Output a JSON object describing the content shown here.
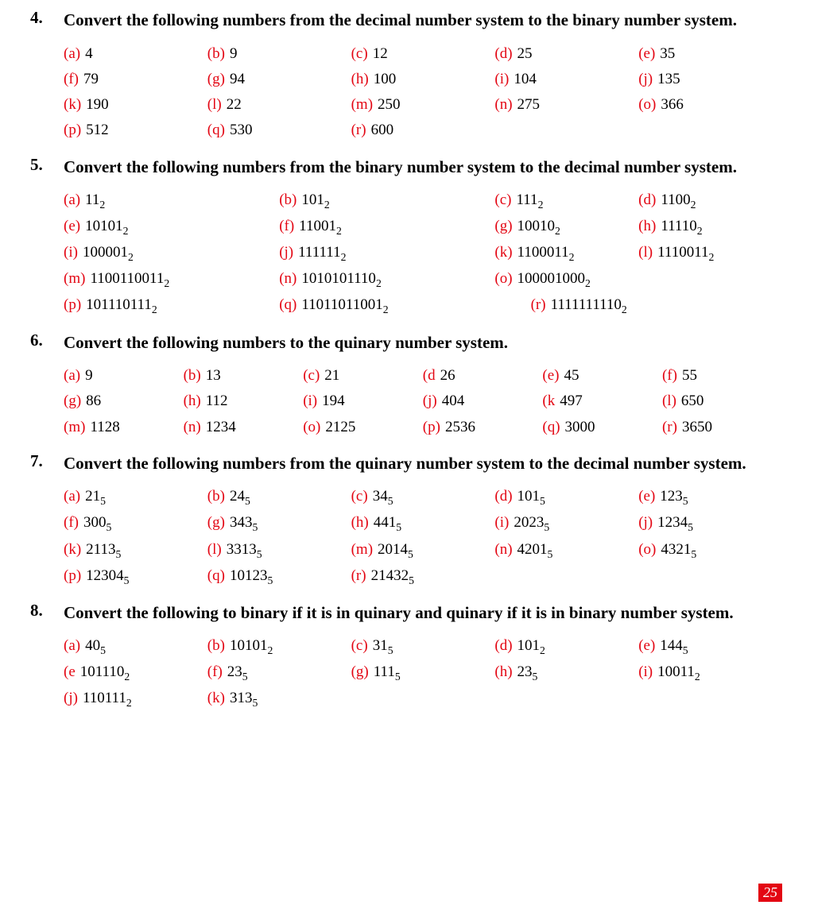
{
  "accent_color": "#e30613",
  "text_color": "#000000",
  "bg_color": "#ffffff",
  "page_corner": "25",
  "q4": {
    "num": "4.",
    "text": "Convert the following numbers from the decimal number system to the binary number system.",
    "items": [
      {
        "l": "(a)",
        "v": "4"
      },
      {
        "l": "(b)",
        "v": "9"
      },
      {
        "l": "(c)",
        "v": "12"
      },
      {
        "l": "(d)",
        "v": "25"
      },
      {
        "l": "(e)",
        "v": "35"
      },
      {
        "l": "(f)",
        "v": "79"
      },
      {
        "l": "(g)",
        "v": "94"
      },
      {
        "l": "(h)",
        "v": "100"
      },
      {
        "l": "(i)",
        "v": "104"
      },
      {
        "l": "(j)",
        "v": "135"
      },
      {
        "l": "(k)",
        "v": "190"
      },
      {
        "l": "(l)",
        "v": "22"
      },
      {
        "l": "(m)",
        "v": "250"
      },
      {
        "l": "(n)",
        "v": "275"
      },
      {
        "l": "(o)",
        "v": "366"
      },
      {
        "l": "(p)",
        "v": "512"
      },
      {
        "l": "(q)",
        "v": "530"
      },
      {
        "l": "(r)",
        "v": "600"
      }
    ]
  },
  "q5": {
    "num": "5.",
    "text": "Convert the following numbers from the binary number system to the decimal number system.",
    "rows": [
      [
        {
          "l": "(a)",
          "v": "11",
          "s": "2"
        },
        {
          "l": "(b)",
          "v": "101",
          "s": "2"
        },
        {
          "l": "(c)",
          "v": "111",
          "s": "2"
        },
        {
          "l": "(d)",
          "v": "1100",
          "s": "2"
        }
      ],
      [
        {
          "l": "(e)",
          "v": "10101",
          "s": "2"
        },
        {
          "l": "(f)",
          "v": "11001",
          "s": "2"
        },
        {
          "l": "(g)",
          "v": "10010",
          "s": "2"
        },
        {
          "l": "(h)",
          "v": "11110",
          "s": "2"
        }
      ],
      [
        {
          "l": "(i)",
          "v": "100001",
          "s": "2"
        },
        {
          "l": "(j)",
          "v": "111111",
          "s": "2"
        },
        {
          "l": "(k)",
          "v": "1100011",
          "s": "2"
        },
        {
          "l": "(l)",
          "v": "1110011",
          "s": "2"
        }
      ],
      [
        {
          "l": "(m)",
          "v": "1100110011",
          "s": "2"
        },
        {
          "l": "(n)",
          "v": "1010101110",
          "s": "2"
        },
        {
          "l": "(o)",
          "v": "100001000",
          "s": "2"
        }
      ],
      [
        {
          "l": "(p)",
          "v": "101110111",
          "s": "2"
        },
        {
          "l": "(q)",
          "v": "11011011001",
          "s": "2"
        },
        {
          "l": "(r)",
          "v": "1111111110",
          "s": "2"
        }
      ]
    ]
  },
  "q6": {
    "num": "6.",
    "text": "Convert the following numbers to the quinary number system.",
    "items": [
      {
        "l": "(a)",
        "v": "9"
      },
      {
        "l": "(b)",
        "v": "13"
      },
      {
        "l": "(c)",
        "v": "21"
      },
      {
        "l": "(d",
        "v": "26"
      },
      {
        "l": "(e)",
        "v": "45"
      },
      {
        "l": "(f)",
        "v": "55"
      },
      {
        "l": "(g)",
        "v": "86"
      },
      {
        "l": "(h)",
        "v": "112"
      },
      {
        "l": "(i)",
        "v": "194"
      },
      {
        "l": "(j)",
        "v": "404"
      },
      {
        "l": "(k",
        "v": "497"
      },
      {
        "l": "(l)",
        "v": "650"
      },
      {
        "l": "(m)",
        "v": "1128"
      },
      {
        "l": "(n)",
        "v": "1234"
      },
      {
        "l": "(o)",
        "v": "2125"
      },
      {
        "l": "(p)",
        "v": "2536"
      },
      {
        "l": "(q)",
        "v": "3000"
      },
      {
        "l": "(r)",
        "v": "3650"
      }
    ]
  },
  "q7": {
    "num": "7.",
    "text": "Convert the following numbers from the quinary number system to the decimal number system.",
    "items": [
      {
        "l": "(a)",
        "v": "21",
        "s": "5"
      },
      {
        "l": "(b)",
        "v": "24",
        "s": "5"
      },
      {
        "l": "(c)",
        "v": "34",
        "s": "5"
      },
      {
        "l": "(d)",
        "v": "101",
        "s": "5"
      },
      {
        "l": "(e)",
        "v": "123",
        "s": "5"
      },
      {
        "l": "(f)",
        "v": "300",
        "s": "5"
      },
      {
        "l": "(g)",
        "v": "343",
        "s": "5"
      },
      {
        "l": "(h)",
        "v": "441",
        "s": "5"
      },
      {
        "l": "(i)",
        "v": "2023",
        "s": "5"
      },
      {
        "l": "(j)",
        "v": "1234",
        "s": "5"
      },
      {
        "l": "(k)",
        "v": "2113",
        "s": "5"
      },
      {
        "l": "(l)",
        "v": "3313",
        "s": "5"
      },
      {
        "l": "(m)",
        "v": "2014",
        "s": "5"
      },
      {
        "l": "(n)",
        "v": "4201",
        "s": "5"
      },
      {
        "l": "(o)",
        "v": "4321",
        "s": "5"
      },
      {
        "l": "(p)",
        "v": "12304",
        "s": "5"
      },
      {
        "l": "(q)",
        "v": "10123",
        "s": "5"
      },
      {
        "l": "(r)",
        "v": "21432",
        "s": "5"
      }
    ]
  },
  "q8": {
    "num": "8.",
    "text": "Convert the following to binary if it is in quinary and quinary if it is in binary number system.",
    "items": [
      {
        "l": "(a)",
        "v": "40",
        "s": "5"
      },
      {
        "l": "(b)",
        "v": "10101",
        "s": "2"
      },
      {
        "l": "(c)",
        "v": "31",
        "s": "5"
      },
      {
        "l": "(d)",
        "v": "101",
        "s": "2"
      },
      {
        "l": "(e)",
        "v": "144",
        "s": "5"
      },
      {
        "l": "(e",
        "v": "101110",
        "s": "2"
      },
      {
        "l": "(f)",
        "v": "23",
        "s": "5"
      },
      {
        "l": "(g)",
        "v": "111",
        "s": "5"
      },
      {
        "l": "(h)",
        "v": "23",
        "s": "5"
      },
      {
        "l": "(i)",
        "v": "10011",
        "s": "2"
      },
      {
        "l": "(j)",
        "v": "110111",
        "s": "2"
      },
      {
        "l": "(k)",
        "v": "313",
        "s": "5"
      }
    ]
  }
}
